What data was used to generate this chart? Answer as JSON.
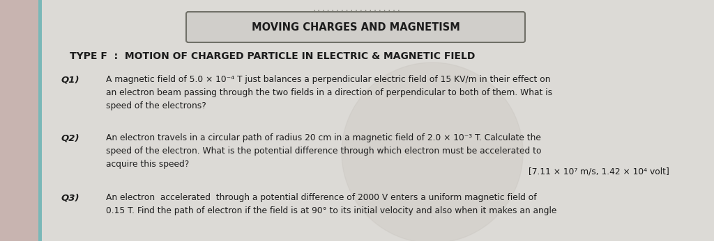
{
  "page_bg": "#d6d4d0",
  "spine_color_left": "#c0b8b0",
  "title_box_text": "MOVING CHARGES AND MAGNETISM",
  "subtitle_line1": "T",
  "subtitle_line1b": "YPE ",
  "subtitle_line1c": "F",
  "subtitle_line1d": " : ",
  "subtitle_line1e": "M",
  "subtitle_line1f": "OTION OF CHARGED PARTICLE IN ",
  "subtitle_line1g": "E",
  "subtitle_line1h": "LECTRIC & ",
  "subtitle_line1i": "M",
  "subtitle_line1j": "AGNETIC ",
  "subtitle_line1k": "F",
  "subtitle_line1l": "IELD",
  "subtitle_full": "TYPE F  :  MOTION OF CHARGED PARTICLE IN ELECTRIC & MAGNETIC FIELD",
  "q1_num": "Q1)",
  "q1_text": "A magnetic field of 5.0 × 10⁻⁴ T just balances a perpendicular electric field of 15 KV/m in their effect on\nan electron beam passing through the two fields in a direction of perpendicular to both of them. What is\nspeed of the electrons?",
  "q2_num": "Q2)",
  "q2_text": "An electron travels in a circular path of radius 20 cm in a magnetic field of 2.0 × 10⁻³ T. Calculate the\nspeed of the electron. What is the potential difference through which electron must be accelerated to\nacquire this speed?",
  "q2_answer": "[7.11 × 10⁷ m/s, 1.42 × 10⁴ volt]",
  "q3_num": "Q3)",
  "q3_text": "An electron  accelerated  through a potential difference of 2000 V enters a uniform magnetic field of\n0.15 T. Find the path of electron if the field is at 90° to its initial velocity and also when it makes an angle",
  "dots_text": "...................",
  "font_color": "#1c1c1c",
  "title_fontsize": 10.5,
  "subtitle_fontsize": 10.0,
  "body_fontsize": 8.8,
  "qnum_fontsize": 9.5,
  "answer_fontsize": 8.8
}
